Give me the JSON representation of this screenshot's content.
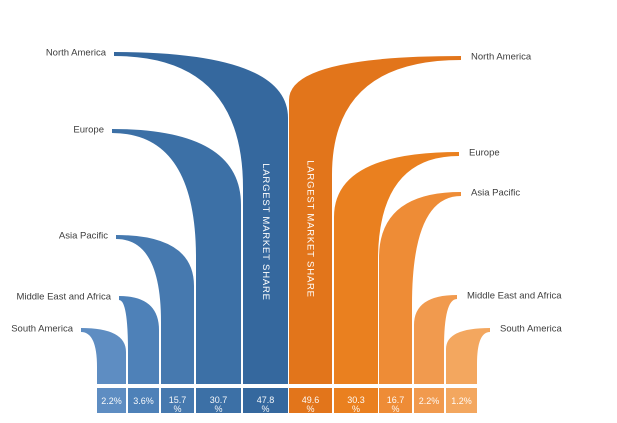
{
  "chart_data": {
    "type": "bar",
    "variant": "mirrored-funnel-tulip",
    "title": "",
    "categories": [
      "North America",
      "Europe",
      "Asia Pacific",
      "Middle East and Africa",
      "South America"
    ],
    "series": [
      {
        "name": "left",
        "values": [
          47.8,
          30.7,
          15.7,
          3.6,
          2.2
        ],
        "value_labels": [
          "47.8 %",
          "30.7 %",
          "15.7 %",
          "3.6%",
          "2.2%"
        ],
        "colors": [
          "#35689e",
          "#3c70a6",
          "#4679af",
          "#4e81b8",
          "#5e8dc2"
        ],
        "center_label": "LARGEST MARKET SHARE"
      },
      {
        "name": "right",
        "values": [
          49.6,
          30.3,
          16.7,
          2.2,
          1.2
        ],
        "value_labels": [
          "49.6 %",
          "30.3 %",
          "16.7 %",
          "2.2%",
          "1.2%"
        ],
        "colors": [
          "#e2751b",
          "#ea801f",
          "#ee8c36",
          "#f19a4e",
          "#f3a75f"
        ],
        "center_label": "LARGEST MARKET SHARE"
      }
    ],
    "legend_position": "none",
    "grid": false,
    "background": "#ffffff",
    "label_color": "#3d3d3d",
    "value_text_color": "#ffffff"
  }
}
